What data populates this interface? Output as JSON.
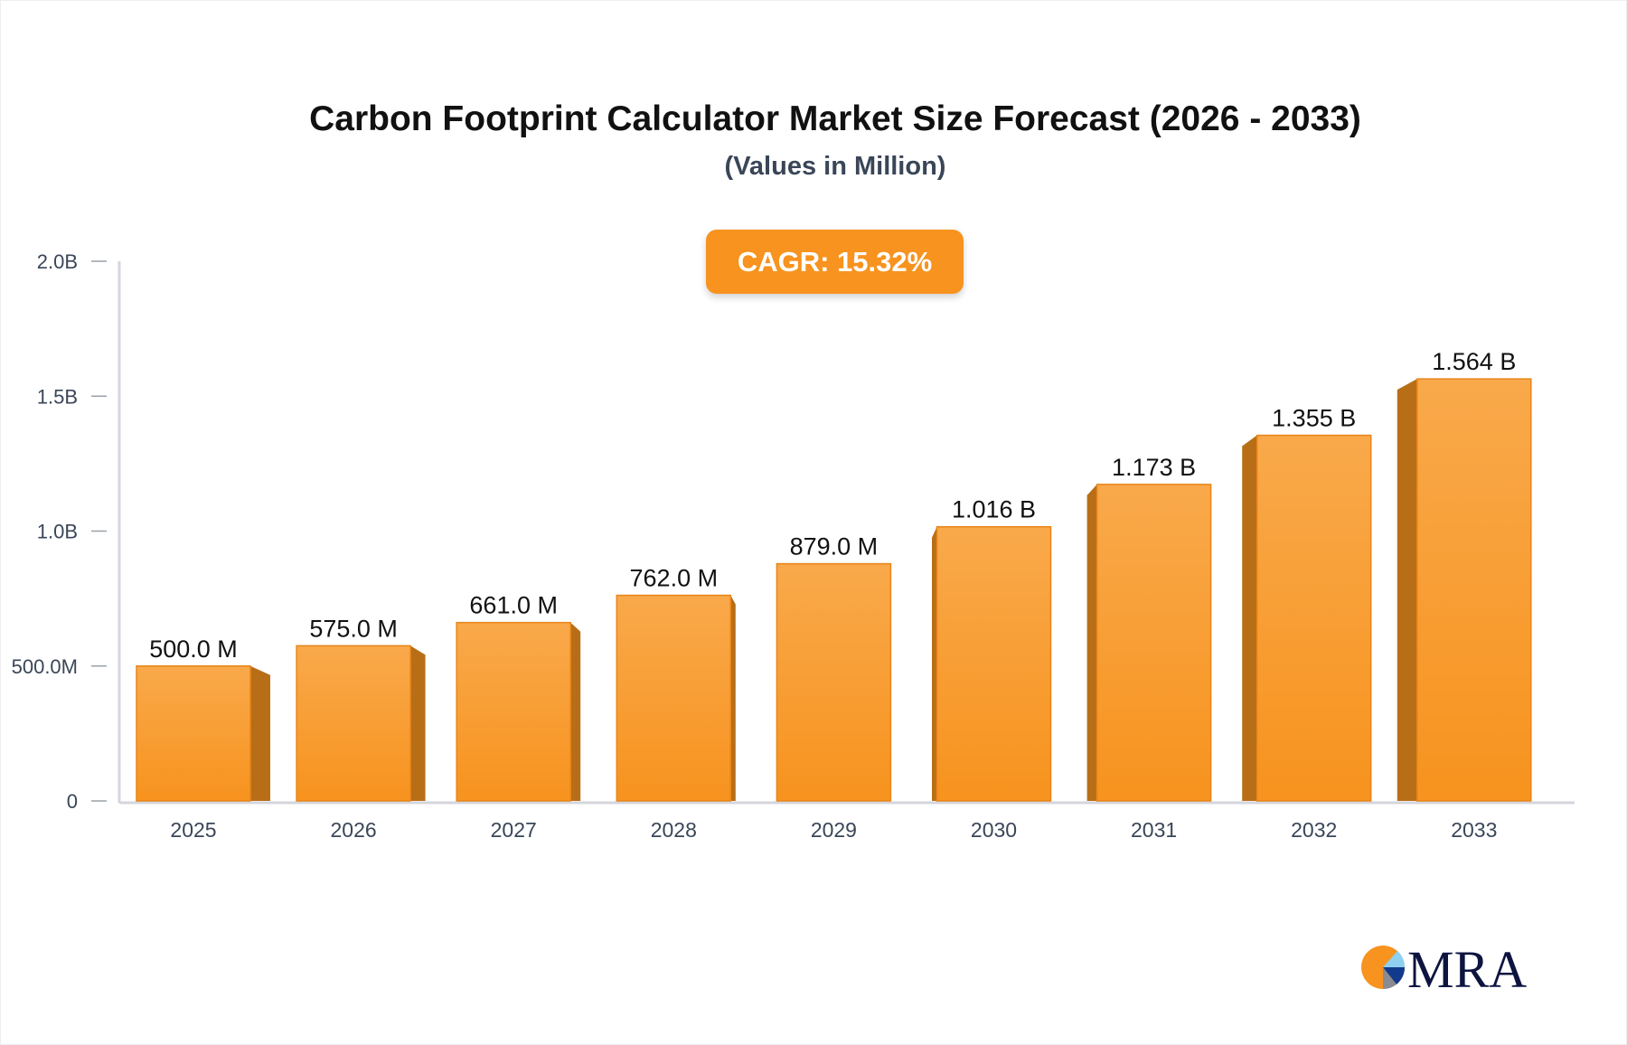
{
  "chart_data": {
    "type": "bar",
    "title": "Carbon Footprint Calculator Market Size Forecast (2026 - 2033)",
    "subtitle": "(Values in Million)",
    "annotation": "CAGR: 15.32%",
    "categories": [
      "2025",
      "2026",
      "2027",
      "2028",
      "2029",
      "2030",
      "2031",
      "2032",
      "2033"
    ],
    "values": [
      500.0,
      575.0,
      661.0,
      762.0,
      879.0,
      1016,
      1173,
      1355,
      1564
    ],
    "data_labels": [
      "500.0 M",
      "575.0 M",
      "661.0 M",
      "762.0 M",
      "879.0 M",
      "1.016 B",
      "1.173 B",
      "1.355 B",
      "1.564 B"
    ],
    "yticks": [
      0,
      500,
      1000,
      1500,
      2000
    ],
    "ytick_labels": [
      "0",
      "500.0M",
      "1.0B",
      "1.5B",
      "2.0B"
    ],
    "ylim": [
      0,
      2000
    ],
    "xlabel": "",
    "ylabel": "",
    "grid": false,
    "colors": {
      "bar": "#f7931e",
      "bar_top": "#f9a94b",
      "bar_side": "#b86e17",
      "axis": "#d4d6dd"
    }
  },
  "logo": {
    "text": "MRA",
    "icon": "pie-chart-logo-icon"
  }
}
